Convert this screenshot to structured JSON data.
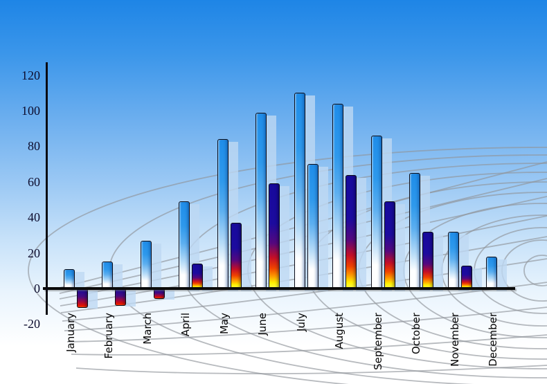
{
  "chart_data": {
    "type": "bar",
    "title": "",
    "xlabel": "",
    "ylabel": "",
    "categories": [
      "January",
      "February",
      "March",
      "April",
      "May",
      "June",
      "July",
      "August",
      "September",
      "October",
      "November",
      "December"
    ],
    "series": [
      {
        "name": "primary-blue-bars",
        "values": [
          11,
          15,
          27,
          49,
          84,
          99,
          110,
          104,
          86,
          65,
          32,
          18
        ]
      },
      {
        "name": "secondary-thermo-bars",
        "values": [
          -10,
          -9,
          -5,
          14,
          37,
          59,
          70,
          64,
          49,
          32,
          13,
          null
        ],
        "bar_style": [
          "flame",
          "flame",
          "flame",
          "flame",
          "flame",
          "flame",
          "blue",
          "flame",
          "flame",
          "flame",
          "flame",
          null
        ]
      }
    ],
    "y_ticks": [
      120,
      100,
      80,
      60,
      40,
      20,
      0,
      "-20"
    ],
    "ylim": [
      -20,
      130
    ],
    "baseline": 0,
    "legend": "none",
    "grid": "decorative curved globe wireframe behind bars",
    "shadow_bars": "each bar repeated as pale translucent copy offset right and down"
  },
  "colors": {
    "sky_top": "#1e85e6",
    "sky_bottom": "#ffffff",
    "bar_blue_top": "#1f8de9",
    "bar_blue_bottom": "#ffffff",
    "flame_navy": "#170a9c",
    "flame_red": "#e31200",
    "flame_yellow": "#ffee00",
    "shadow_bar": "rgba(190,216,243,0.8)",
    "grid_line": "#90959b",
    "axis": "#0a0a0a",
    "y_tick_text": "#0d0d2e",
    "x_label_text": "#050505"
  }
}
